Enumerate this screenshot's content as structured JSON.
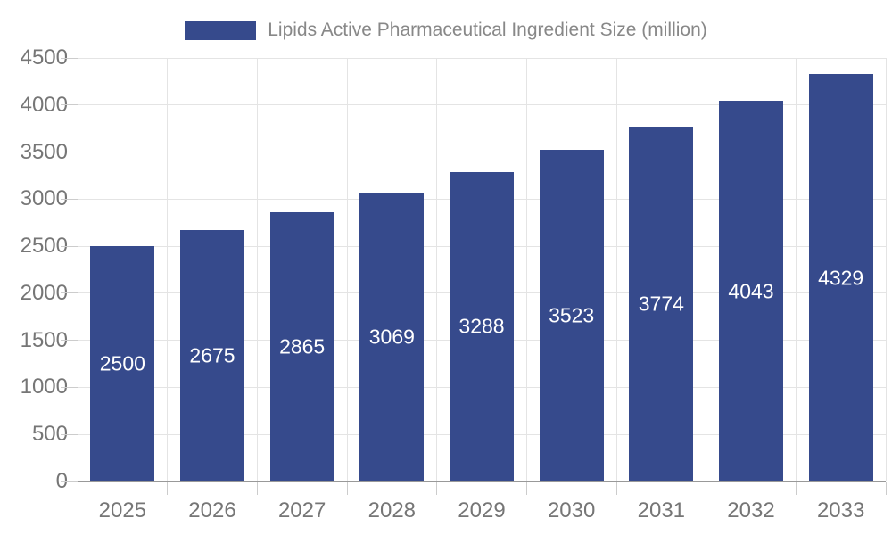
{
  "chart_data": {
    "type": "bar",
    "title": "Lipids Active Pharmaceutical Ingredient Size (million)",
    "legend": [
      "Lipids Active Pharmaceutical Ingredient Size (million)"
    ],
    "legend_position": "top",
    "categories": [
      "2025",
      "2026",
      "2027",
      "2028",
      "2029",
      "2030",
      "2031",
      "2032",
      "2033"
    ],
    "values": [
      2500,
      2675,
      2865,
      3069,
      3288,
      3523,
      3774,
      4043,
      4329
    ],
    "xlabel": "",
    "ylabel": "",
    "ylim": [
      0,
      4500
    ],
    "ytick_labels": [
      "0",
      "500",
      "1000",
      "1500",
      "2000",
      "2500",
      "3000",
      "3500",
      "4000",
      "4500"
    ],
    "grid": true,
    "bar_labels_inside": true
  },
  "colors": {
    "bar": "#364A8C",
    "bar_label_text": "#ffffff",
    "axis_tick_text": "#767676",
    "legend_text": "#888888",
    "gridline": "#e4e4e4",
    "tick_mark": "#cccccc",
    "axis_line": "#999999"
  }
}
